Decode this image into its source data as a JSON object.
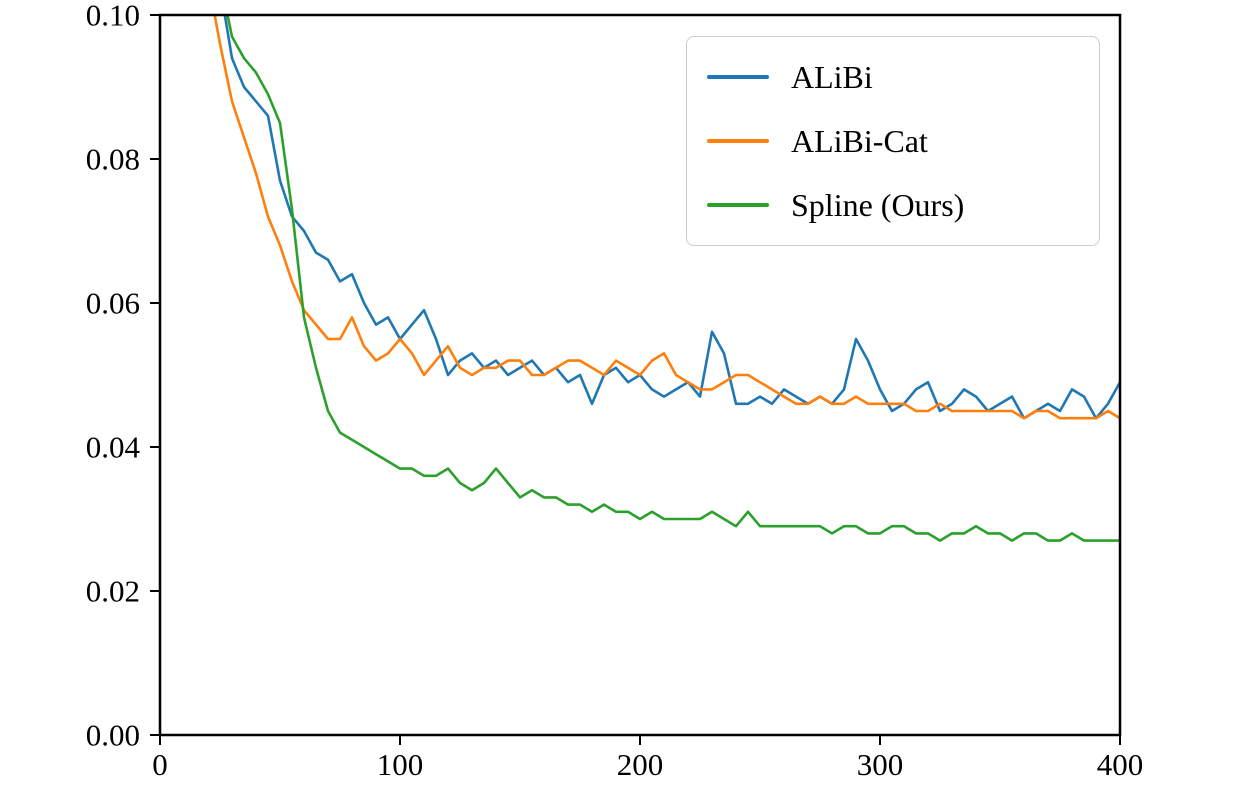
{
  "figure": {
    "background": "#ffffff",
    "axes_color": "#000000"
  },
  "chart_data": {
    "type": "line",
    "title": "",
    "xlabel": "",
    "ylabel": "",
    "xlim": [
      0,
      400
    ],
    "ylim": [
      0.0,
      0.1
    ],
    "grid": false,
    "legend_position": "upper right",
    "xticks": [
      0,
      100,
      200,
      300,
      400
    ],
    "xtick_labels": [
      "0",
      "100",
      "200",
      "300",
      "400"
    ],
    "yticks": [
      0.0,
      0.02,
      0.04,
      0.06,
      0.08,
      0.1
    ],
    "ytick_labels": [
      "0.00",
      "0.02",
      "0.04",
      "0.06",
      "0.08",
      "0.10"
    ],
    "series": [
      {
        "name": "ALiBi",
        "color": "#1f77b4",
        "x": [
          25,
          30,
          35,
          40,
          45,
          50,
          55,
          60,
          65,
          70,
          75,
          80,
          85,
          90,
          95,
          100,
          105,
          110,
          115,
          120,
          125,
          130,
          135,
          140,
          145,
          150,
          155,
          160,
          165,
          170,
          175,
          180,
          185,
          190,
          195,
          200,
          205,
          210,
          215,
          220,
          225,
          230,
          235,
          240,
          245,
          250,
          255,
          260,
          265,
          270,
          275,
          280,
          285,
          290,
          295,
          300,
          305,
          310,
          315,
          320,
          325,
          330,
          335,
          340,
          345,
          350,
          355,
          360,
          365,
          370,
          375,
          380,
          385,
          390,
          395,
          400
        ],
        "y": [
          0.104,
          0.094,
          0.09,
          0.088,
          0.086,
          0.077,
          0.072,
          0.07,
          0.067,
          0.066,
          0.063,
          0.064,
          0.06,
          0.057,
          0.058,
          0.055,
          0.057,
          0.059,
          0.055,
          0.05,
          0.052,
          0.053,
          0.051,
          0.052,
          0.05,
          0.051,
          0.052,
          0.05,
          0.051,
          0.049,
          0.05,
          0.046,
          0.05,
          0.051,
          0.049,
          0.05,
          0.048,
          0.047,
          0.048,
          0.049,
          0.047,
          0.056,
          0.053,
          0.046,
          0.046,
          0.047,
          0.046,
          0.048,
          0.047,
          0.046,
          0.047,
          0.046,
          0.048,
          0.055,
          0.052,
          0.048,
          0.045,
          0.046,
          0.048,
          0.049,
          0.045,
          0.046,
          0.048,
          0.047,
          0.045,
          0.046,
          0.047,
          0.044,
          0.045,
          0.046,
          0.045,
          0.048,
          0.047,
          0.044,
          0.046,
          0.049
        ]
      },
      {
        "name": "ALiBi-Cat",
        "color": "#ff7f0e",
        "x": [
          20,
          25,
          30,
          35,
          40,
          45,
          50,
          55,
          60,
          65,
          70,
          75,
          80,
          85,
          90,
          95,
          100,
          105,
          110,
          115,
          120,
          125,
          130,
          135,
          140,
          145,
          150,
          155,
          160,
          165,
          170,
          175,
          180,
          185,
          190,
          195,
          200,
          205,
          210,
          215,
          220,
          225,
          230,
          235,
          240,
          245,
          250,
          255,
          260,
          265,
          270,
          275,
          280,
          285,
          290,
          295,
          300,
          305,
          310,
          315,
          320,
          325,
          330,
          335,
          340,
          345,
          350,
          355,
          360,
          365,
          370,
          375,
          380,
          385,
          390,
          395,
          400
        ],
        "y": [
          0.105,
          0.096,
          0.088,
          0.083,
          0.078,
          0.072,
          0.068,
          0.063,
          0.059,
          0.057,
          0.055,
          0.055,
          0.058,
          0.054,
          0.052,
          0.053,
          0.055,
          0.053,
          0.05,
          0.052,
          0.054,
          0.051,
          0.05,
          0.051,
          0.051,
          0.052,
          0.052,
          0.05,
          0.05,
          0.051,
          0.052,
          0.052,
          0.051,
          0.05,
          0.052,
          0.051,
          0.05,
          0.052,
          0.053,
          0.05,
          0.049,
          0.048,
          0.048,
          0.049,
          0.05,
          0.05,
          0.049,
          0.048,
          0.047,
          0.046,
          0.046,
          0.047,
          0.046,
          0.046,
          0.047,
          0.046,
          0.046,
          0.046,
          0.046,
          0.045,
          0.045,
          0.046,
          0.045,
          0.045,
          0.045,
          0.045,
          0.045,
          0.045,
          0.044,
          0.045,
          0.045,
          0.044,
          0.044,
          0.044,
          0.044,
          0.045,
          0.044
        ]
      },
      {
        "name": "Spline (Ours)",
        "color": "#2ca02c",
        "x": [
          25,
          30,
          35,
          40,
          45,
          50,
          55,
          60,
          65,
          70,
          75,
          80,
          85,
          90,
          95,
          100,
          105,
          110,
          115,
          120,
          125,
          130,
          135,
          140,
          145,
          150,
          155,
          160,
          165,
          170,
          175,
          180,
          185,
          190,
          195,
          200,
          205,
          210,
          215,
          220,
          225,
          230,
          235,
          240,
          245,
          250,
          255,
          260,
          265,
          270,
          275,
          280,
          285,
          290,
          295,
          300,
          305,
          310,
          315,
          320,
          325,
          330,
          335,
          340,
          345,
          350,
          355,
          360,
          365,
          370,
          375,
          380,
          385,
          390,
          395,
          400
        ],
        "y": [
          0.105,
          0.097,
          0.094,
          0.092,
          0.089,
          0.085,
          0.073,
          0.058,
          0.051,
          0.045,
          0.042,
          0.041,
          0.04,
          0.039,
          0.038,
          0.037,
          0.037,
          0.036,
          0.036,
          0.037,
          0.035,
          0.034,
          0.035,
          0.037,
          0.035,
          0.033,
          0.034,
          0.033,
          0.033,
          0.032,
          0.032,
          0.031,
          0.032,
          0.031,
          0.031,
          0.03,
          0.031,
          0.03,
          0.03,
          0.03,
          0.03,
          0.031,
          0.03,
          0.029,
          0.031,
          0.029,
          0.029,
          0.029,
          0.029,
          0.029,
          0.029,
          0.028,
          0.029,
          0.029,
          0.028,
          0.028,
          0.029,
          0.029,
          0.028,
          0.028,
          0.027,
          0.028,
          0.028,
          0.029,
          0.028,
          0.028,
          0.027,
          0.028,
          0.028,
          0.027,
          0.027,
          0.028,
          0.027,
          0.027,
          0.027,
          0.027
        ]
      }
    ]
  }
}
